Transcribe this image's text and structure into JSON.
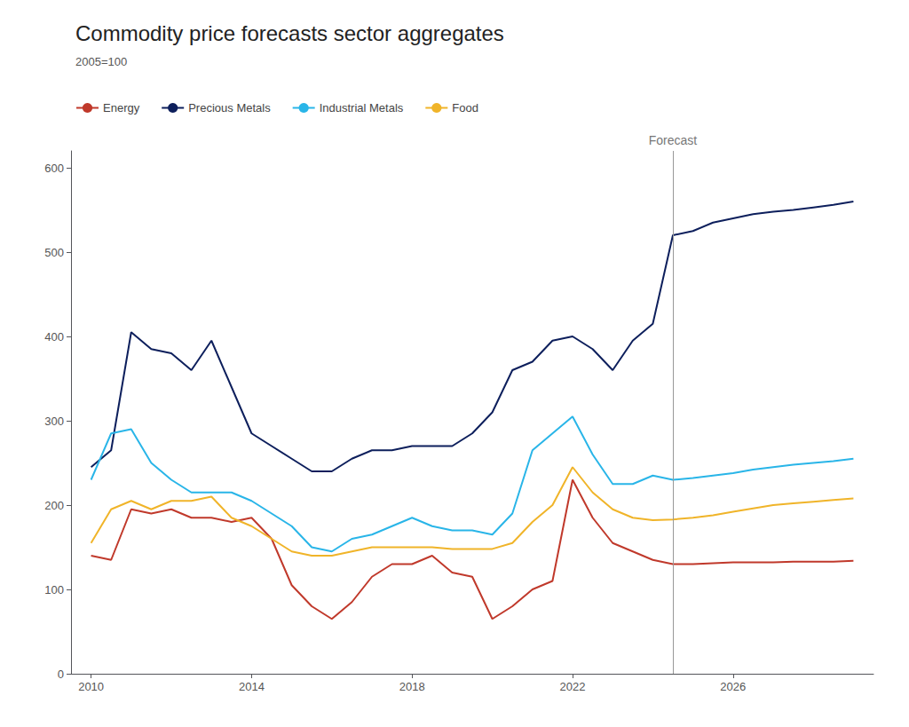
{
  "chart_data": {
    "type": "line",
    "title": "Commodity price forecasts sector aggregates",
    "subtitle": "2005=100",
    "x": [
      2010,
      2010.5,
      2011,
      2011.5,
      2012,
      2012.5,
      2013,
      2013.5,
      2014,
      2014.5,
      2015,
      2015.5,
      2016,
      2016.5,
      2017,
      2017.5,
      2018,
      2018.5,
      2019,
      2019.5,
      2020,
      2020.5,
      2021,
      2021.5,
      2022,
      2022.5,
      2023,
      2023.5,
      2024,
      2024.5,
      2025,
      2025.5,
      2026,
      2026.5,
      2027,
      2027.5,
      2028,
      2028.5,
      2029
    ],
    "series": [
      {
        "name": "Energy",
        "color": "#c0392b",
        "values": [
          140,
          135,
          195,
          190,
          195,
          185,
          185,
          180,
          185,
          160,
          105,
          80,
          65,
          85,
          115,
          130,
          130,
          140,
          120,
          115,
          65,
          80,
          100,
          110,
          230,
          185,
          155,
          145,
          135,
          130,
          130,
          131,
          132,
          132,
          132,
          133,
          133,
          133,
          134
        ]
      },
      {
        "name": "Precious Metals",
        "color": "#0d1f5c",
        "values": [
          245,
          265,
          405,
          385,
          380,
          360,
          395,
          340,
          285,
          270,
          255,
          240,
          240,
          255,
          265,
          265,
          270,
          270,
          270,
          285,
          310,
          360,
          370,
          395,
          400,
          385,
          360,
          395,
          415,
          520,
          525,
          535,
          540,
          545,
          548,
          550,
          553,
          556,
          560
        ]
      },
      {
        "name": "Industrial Metals",
        "color": "#29b5e8",
        "values": [
          230,
          285,
          290,
          250,
          230,
          215,
          215,
          215,
          205,
          190,
          175,
          150,
          145,
          160,
          165,
          175,
          185,
          175,
          170,
          170,
          165,
          190,
          265,
          285,
          305,
          260,
          225,
          225,
          235,
          230,
          232,
          235,
          238,
          242,
          245,
          248,
          250,
          252,
          255
        ]
      },
      {
        "name": "Food",
        "color": "#f0b429",
        "values": [
          155,
          195,
          205,
          195,
          205,
          205,
          210,
          185,
          175,
          160,
          145,
          140,
          140,
          145,
          150,
          150,
          150,
          150,
          148,
          148,
          148,
          155,
          180,
          200,
          245,
          215,
          195,
          185,
          182,
          183,
          185,
          188,
          192,
          196,
          200,
          202,
          204,
          206,
          208
        ]
      }
    ],
    "annotations": [
      {
        "text": "Forecast",
        "x": 2024.5
      }
    ],
    "xlim": [
      2009.5,
      2029.5
    ],
    "xticks": [
      2010,
      2014,
      2018,
      2022,
      2026
    ],
    "ylim": [
      0,
      620
    ],
    "yticks": [
      0,
      100,
      200,
      300,
      400,
      500,
      600
    ],
    "grid": false,
    "legend": "upper left"
  }
}
